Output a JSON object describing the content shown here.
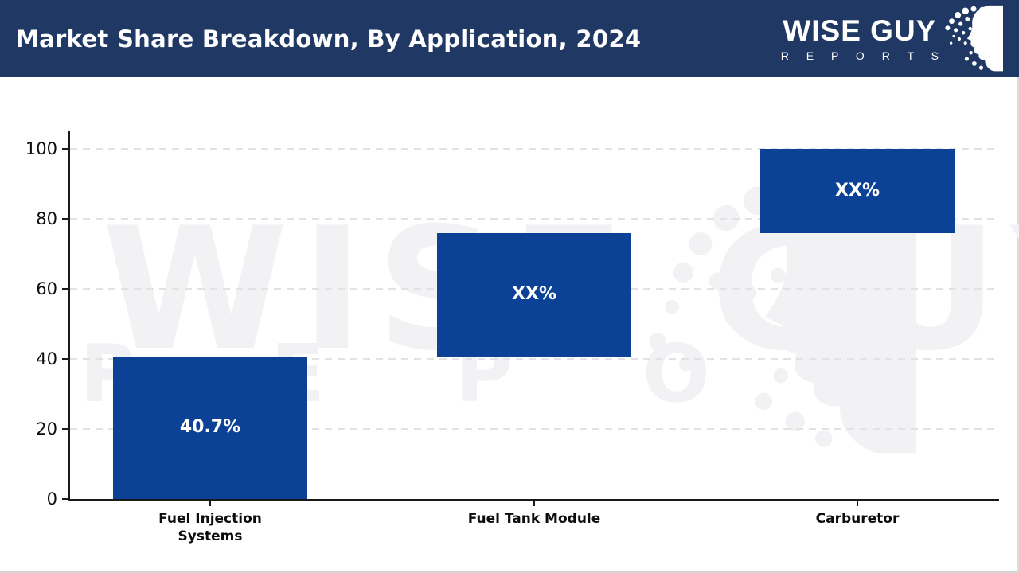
{
  "header": {
    "title": "Market Share Breakdown, By Application, 2024",
    "bg_color": "#1f3864",
    "logo": {
      "wordmark": "WISE GUY",
      "subtext": "R E P O R T S",
      "face_icon": "dotted-face-profile-icon"
    }
  },
  "watermark": {
    "line1": "WISE GUY",
    "line2": "REPORTS",
    "color": "#f2f2f4"
  },
  "chart_data": {
    "type": "bar",
    "subtype": "waterfall-market-share",
    "title": "Market Share Breakdown, By Application, 2024",
    "categories": [
      "Fuel Injection\nSystems",
      "Fuel Tank Module",
      "Carburetor"
    ],
    "segments": [
      {
        "category": "Fuel Injection Systems",
        "start": 0,
        "end": 40.7,
        "label": "40.7%"
      },
      {
        "category": "Fuel Tank Module",
        "start": 40.7,
        "end": 75.8,
        "label": "XX%"
      },
      {
        "category": "Carburetor",
        "start": 75.8,
        "end": 100,
        "label": "XX%"
      }
    ],
    "xlabel": "",
    "ylabel": "",
    "ylim": [
      0,
      105
    ],
    "yticks": [
      0,
      20,
      40,
      60,
      80,
      100
    ],
    "grid": "horizontal-dashed",
    "legend": "none",
    "bar_color": "#0b4295",
    "bar_label_color": "#ffffff",
    "axis_color": "#1a1a1a",
    "gridline_color": "#e2e2e4"
  }
}
